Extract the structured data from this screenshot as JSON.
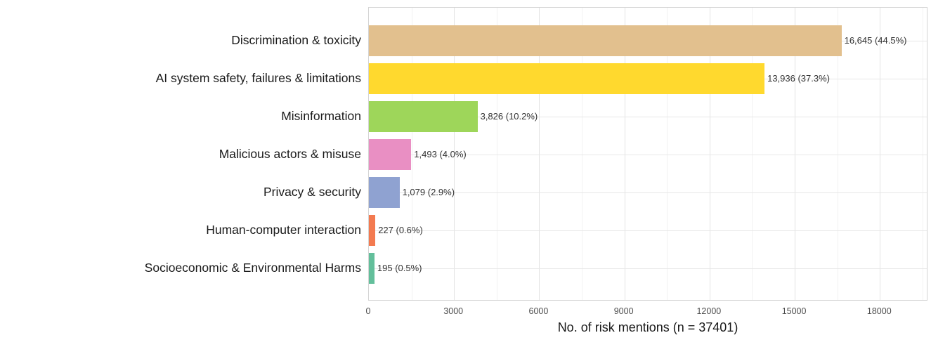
{
  "chart_data": {
    "type": "bar",
    "orientation": "horizontal",
    "title": "",
    "xlabel": "No. of risk mentions (n = 37401)",
    "ylabel": "",
    "categories": [
      "Discrimination & toxicity",
      "AI system safety, failures & limitations",
      "Misinformation",
      "Malicious actors & misuse",
      "Privacy & security",
      "Human-computer interaction",
      "Socioeconomic & Environmental Harms"
    ],
    "values": [
      16645,
      13936,
      3826,
      1493,
      1079,
      227,
      195
    ],
    "value_labels": [
      "16,645 (44.5%)",
      "13,936 (37.3%)",
      "3,826 (10.2%)",
      "1,493 (4.0%)",
      "1,079 (2.9%)",
      "227 (0.6%)",
      "195 (0.5%)"
    ],
    "bar_colors": [
      "#e2c08e",
      "#ffd92e",
      "#9ed65a",
      "#e98fc3",
      "#8fa2d1",
      "#f37a50",
      "#63bf9b"
    ],
    "x_ticks": [
      0,
      3000,
      6000,
      9000,
      12000,
      15000,
      18000
    ],
    "x_minor_ticks": [
      1500,
      4500,
      7500,
      10500,
      13500,
      16500,
      19500
    ],
    "xlim": [
      0,
      19700
    ],
    "grid": "major-and-minor",
    "legend": "none",
    "total_n": 37401
  },
  "style": {
    "background": "#ffffff",
    "panel_border_color": "#d4d4d4",
    "grid_major_color": "#e3e3e3",
    "grid_minor_color": "#f2f2f2",
    "category_text_color": "#1a1a1a",
    "value_label_color": "#333333",
    "tick_label_color": "#4d4d4d"
  }
}
